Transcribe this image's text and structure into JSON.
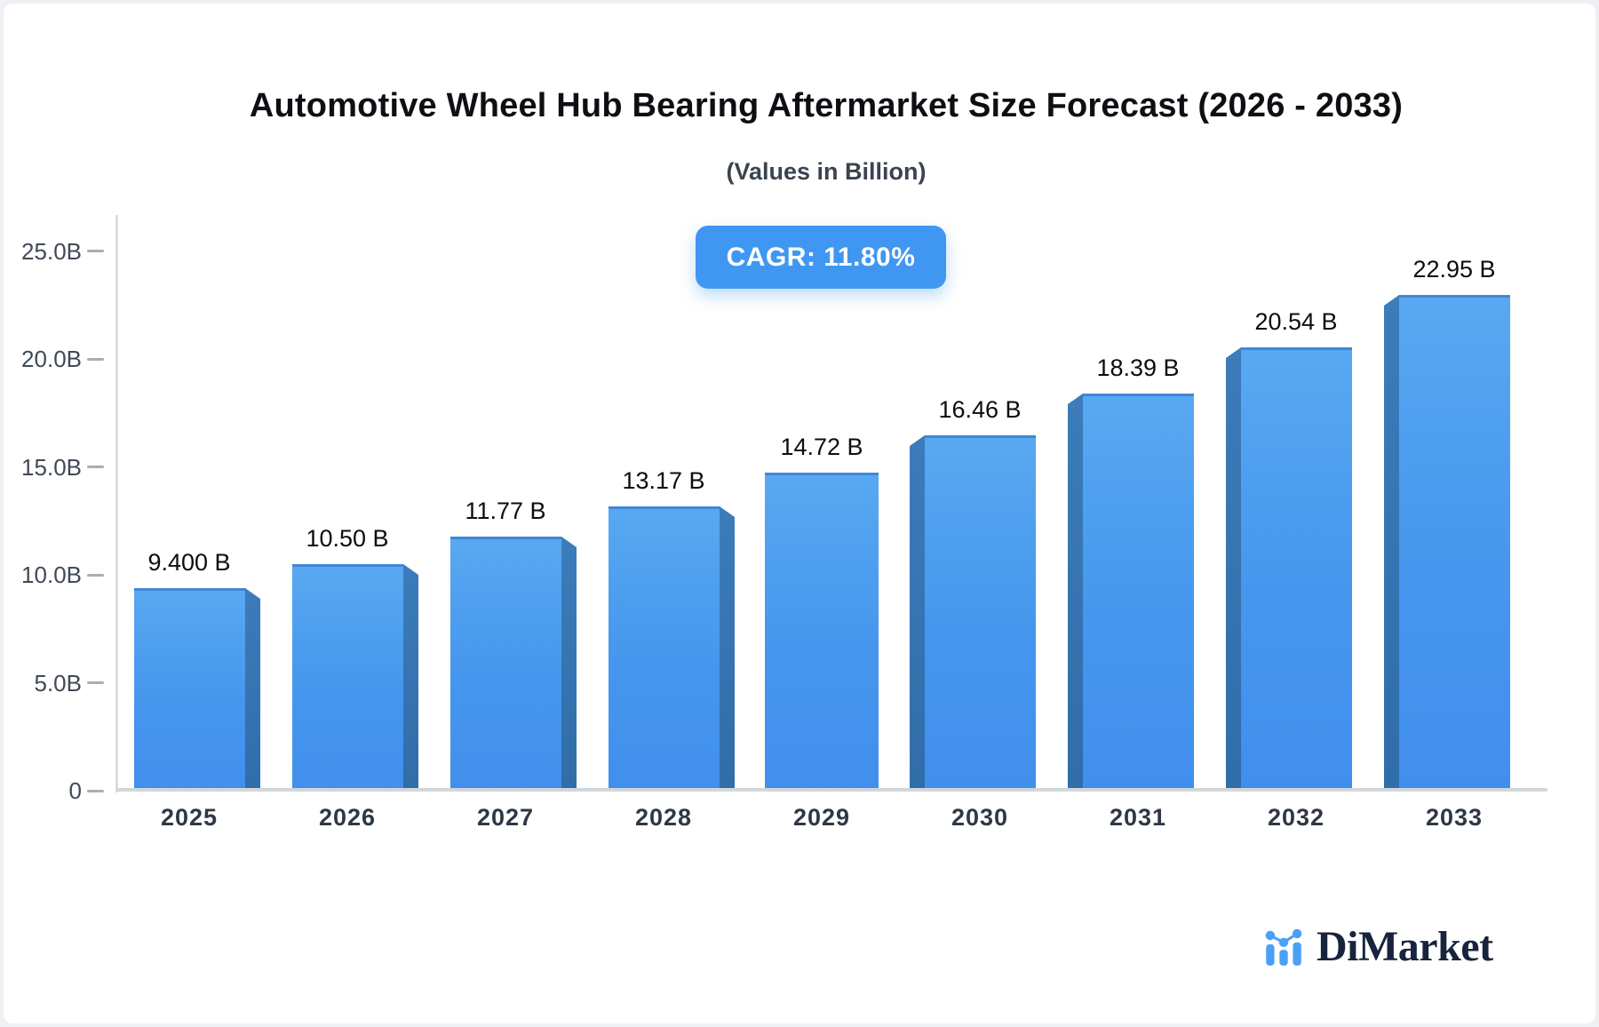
{
  "title": "Automotive Wheel Hub Bearing Aftermarket Size Forecast (2026 - 2033)",
  "subtitle": "(Values in Billion)",
  "cagr_label": "CAGR: 11.80%",
  "logo_text": "DiMarket",
  "colors": {
    "accent_blue": "#3f97f2",
    "bar_face": "#4d9fef",
    "bar_side": "#3574b1",
    "axis_gray": "#d2d7dc",
    "logo_navy": "#16253d",
    "logo_blue": "#4aa0f8"
  },
  "chart_data": {
    "type": "bar",
    "title": "Automotive Wheel Hub Bearing Aftermarket Size Forecast (2026 - 2033)",
    "subtitle": "(Values in Billion)",
    "cagr": "11.80%",
    "categories": [
      "2025",
      "2026",
      "2027",
      "2028",
      "2029",
      "2030",
      "2031",
      "2032",
      "2033"
    ],
    "values": [
      9.4,
      10.5,
      11.77,
      13.17,
      14.72,
      16.46,
      18.39,
      20.54,
      22.95
    ],
    "bar_labels": [
      "9.400 B",
      "10.50 B",
      "11.77 B",
      "13.17 B",
      "14.72 B",
      "16.46 B",
      "18.39 B",
      "20.54 B",
      "22.95 B"
    ],
    "xlabel": "",
    "ylabel": "",
    "ylim": [
      0,
      25
    ],
    "yticks": [
      {
        "value": 0,
        "label": "0"
      },
      {
        "value": 5,
        "label": "5.0B"
      },
      {
        "value": 10,
        "label": "10.0B"
      },
      {
        "value": 15,
        "label": "15.0B"
      },
      {
        "value": 20,
        "label": "20.0B"
      },
      {
        "value": 25,
        "label": "25.0B"
      }
    ],
    "grid": false,
    "legend": false
  }
}
